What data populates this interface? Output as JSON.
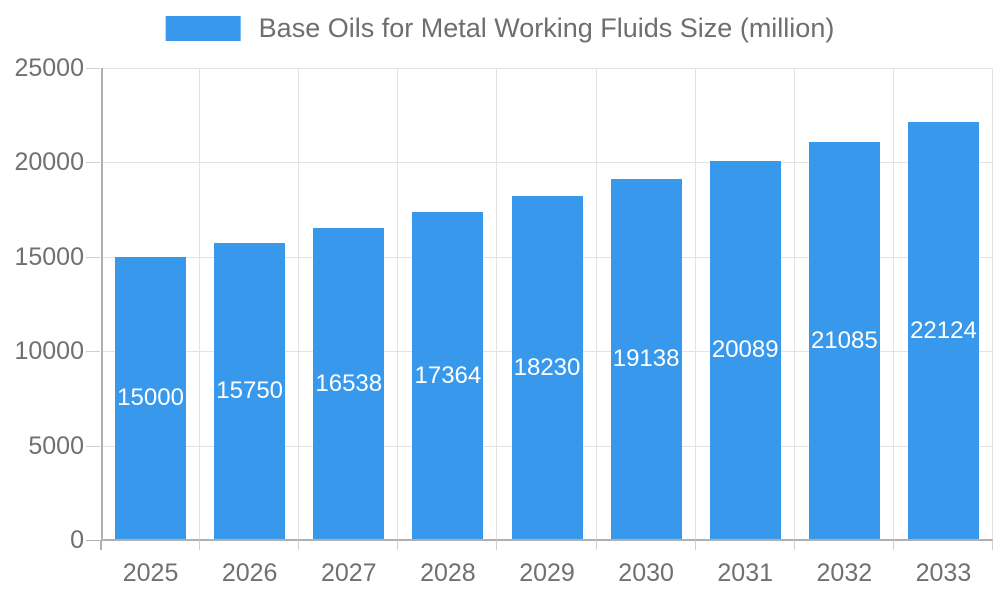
{
  "legend": {
    "label": "Base Oils for Metal Working Fluids Size (million)"
  },
  "chart_data": {
    "type": "bar",
    "title": "Base Oils for Metal Working Fluids Size (million)",
    "categories": [
      "2025",
      "2026",
      "2027",
      "2028",
      "2029",
      "2030",
      "2031",
      "2032",
      "2033"
    ],
    "series": [
      {
        "name": "Base Oils for Metal Working Fluids Size (million)",
        "values": [
          15000,
          15750,
          16538,
          17364,
          18230,
          19138,
          20089,
          21085,
          22124
        ]
      }
    ],
    "xlabel": "",
    "ylabel": "",
    "ylim": [
      0,
      25000
    ],
    "yticks": [
      0,
      5000,
      10000,
      15000,
      20000,
      25000
    ],
    "grid": true,
    "legend_position": "top",
    "bar_value_labels": "inside-center",
    "colors": {
      "bar": "#3898EC",
      "bar_label": "#FFFFFF",
      "grid_line": "#E3E3E3",
      "axis_line": "#B0B0B0",
      "tick_mark": "#CFCFCF",
      "tick_label": "#707070",
      "legend_text": "#6E6E6E",
      "background": "#FFFFFF"
    }
  }
}
